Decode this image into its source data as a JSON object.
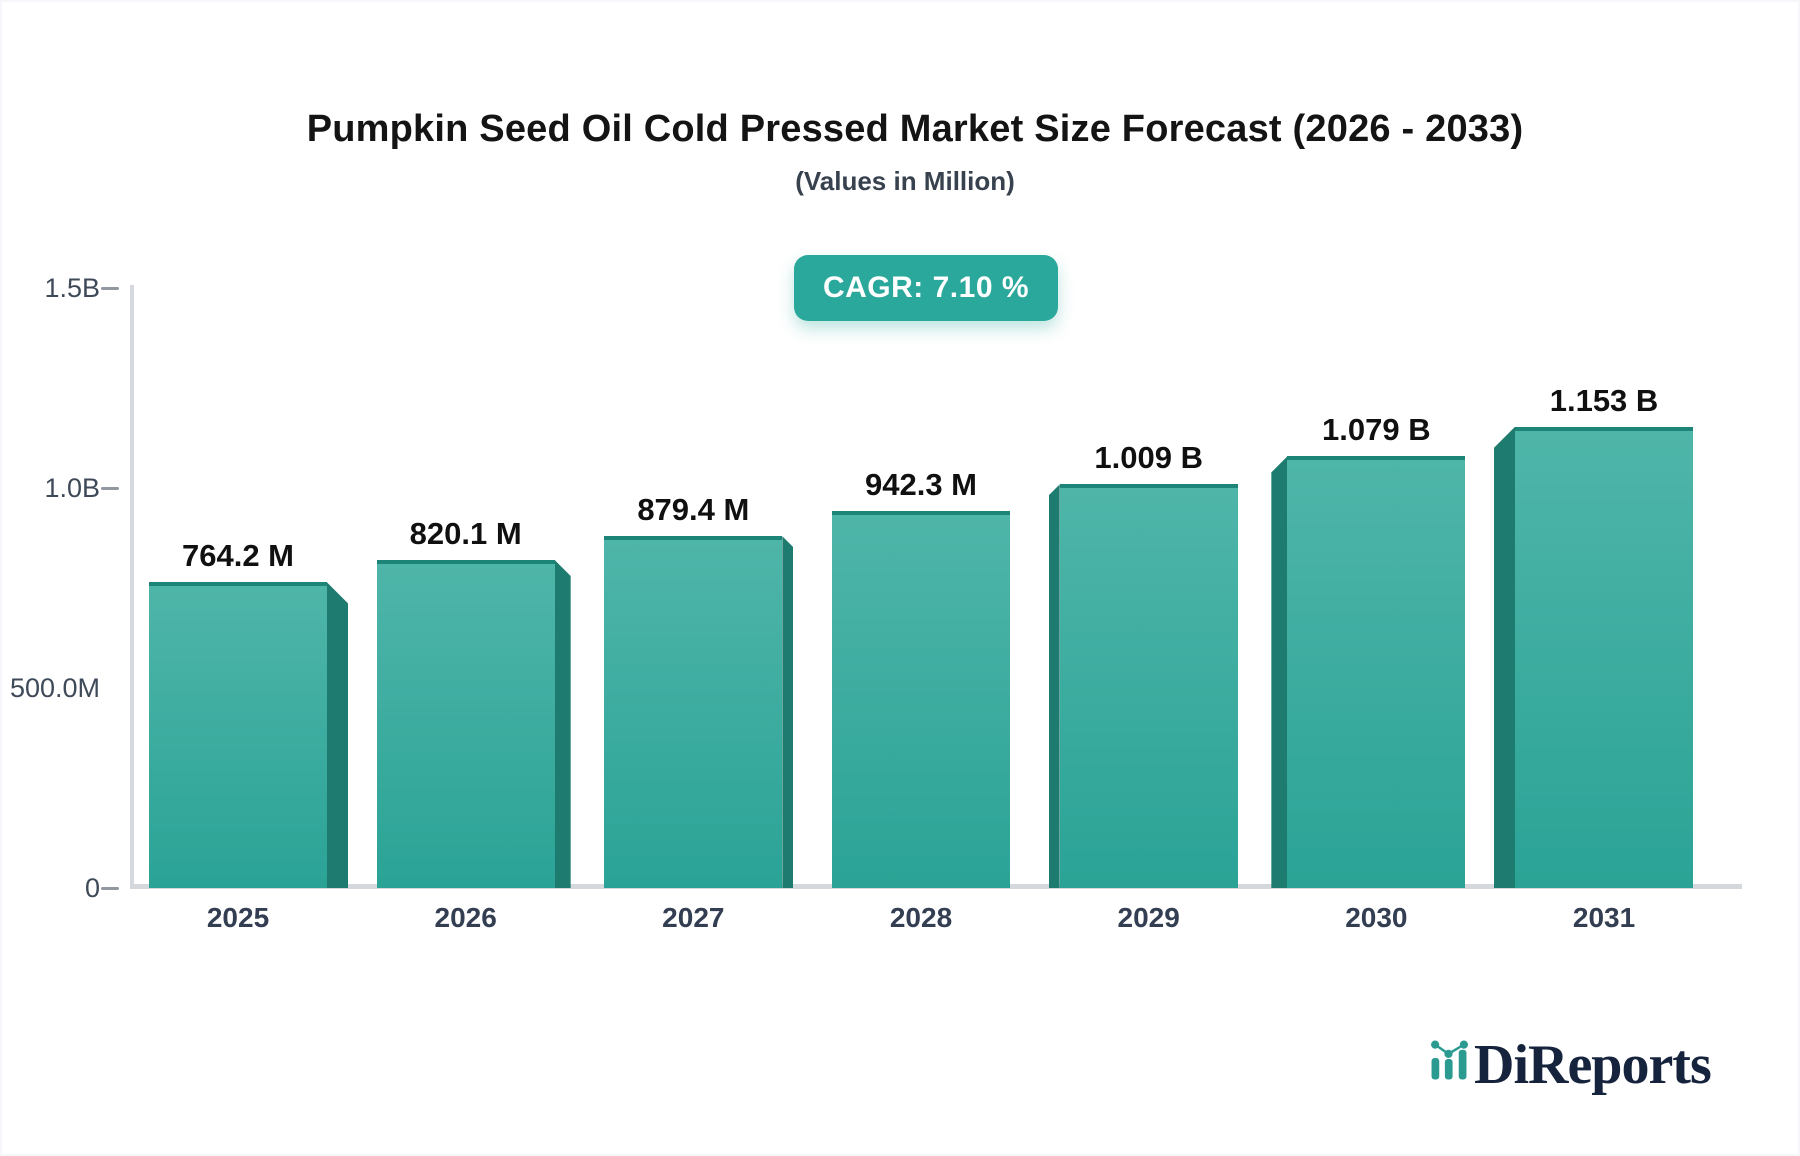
{
  "header": {
    "title": "Pumpkin Seed Oil Cold Pressed Market Size Forecast (2026 - 2033)",
    "subtitle": "(Values in Million)",
    "cagr_badge": "CAGR: 7.10 %"
  },
  "chart_data": {
    "type": "bar",
    "title": "Pumpkin Seed Oil Cold Pressed Market Size Forecast (2026 - 2033)",
    "subtitle": "(Values in Million)",
    "unit": "Million USD",
    "cagr": "7.10 %",
    "categories": [
      "2025",
      "2026",
      "2027",
      "2028",
      "2029",
      "2030",
      "2031"
    ],
    "values": [
      764.2,
      820.1,
      879.4,
      942.3,
      1009,
      1079,
      1153
    ],
    "value_labels": [
      "764.2 M",
      "820.1 M",
      "879.4 M",
      "942.3 M",
      "1.009 B",
      "1.079 B",
      "1.153 B"
    ],
    "ylim": [
      0,
      1500
    ],
    "yticks": [
      {
        "label": "1.5B",
        "value": 1500,
        "tick": true
      },
      {
        "label": "1.0B",
        "value": 1000,
        "tick": true
      },
      {
        "label": "500.0M",
        "value": 500,
        "tick": false
      },
      {
        "label": "0",
        "value": 0,
        "tick": true
      }
    ],
    "grid": false,
    "legend": "none",
    "bar_style": "3d-center-perspective"
  },
  "colors": {
    "bar_face_top": "#4fb5a9",
    "bar_face_bottom": "#2aa396",
    "bar_top_border": "#1d8578",
    "bar_side_face": "#1e7b6f",
    "badge_bg": "#2aa89b",
    "axis_line": "#d5d8dd",
    "tick": "#9298a0"
  },
  "logo": {
    "text": "DiReports",
    "icon": "bar-chart-trend-icon"
  }
}
